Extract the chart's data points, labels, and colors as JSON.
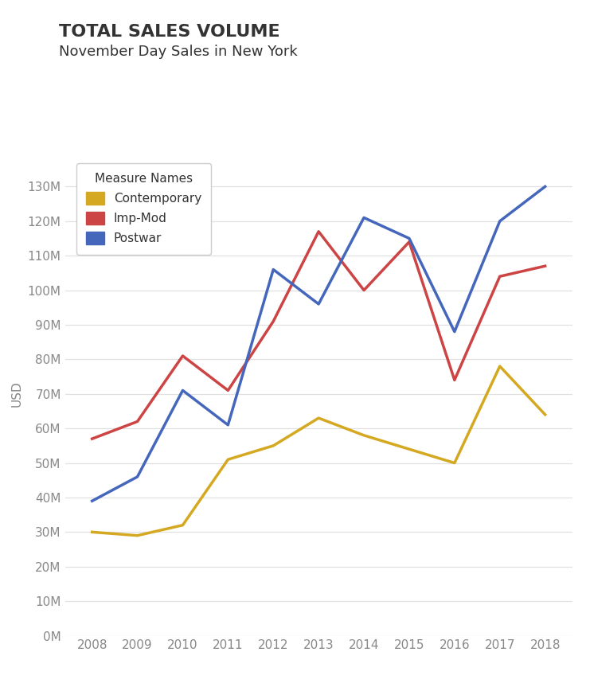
{
  "title": "TOTAL SALES VOLUME",
  "subtitle": "November Day Sales in New York",
  "years": [
    2008,
    2009,
    2010,
    2011,
    2012,
    2013,
    2014,
    2015,
    2016,
    2017,
    2018
  ],
  "contemporary": [
    30,
    29,
    32,
    51,
    55,
    63,
    58,
    54,
    50,
    78,
    64
  ],
  "imp_mod": [
    57,
    62,
    81,
    71,
    91,
    117,
    100,
    114,
    74,
    104,
    107
  ],
  "postwar": [
    39,
    46,
    71,
    61,
    106,
    96,
    121,
    115,
    88,
    120,
    130
  ],
  "colors": {
    "contemporary": "#D4A820",
    "imp_mod": "#CC4444",
    "postwar": "#4466BB"
  },
  "legend_labels": [
    "Contemporary",
    "Imp-Mod",
    "Postwar"
  ],
  "legend_title": "Measure Names",
  "ylabel": "USD",
  "ylim": [
    0,
    140
  ],
  "yticks": [
    0,
    10,
    20,
    30,
    40,
    50,
    60,
    70,
    80,
    90,
    100,
    110,
    120,
    130
  ],
  "ytick_labels": [
    "0M",
    "10M",
    "20M",
    "30M",
    "40M",
    "50M",
    "60M",
    "70M",
    "80M",
    "90M",
    "100M",
    "110M",
    "120M",
    "130M"
  ],
  "background_color": "#FFFFFF",
  "plot_bg_color": "#FFFFFF",
  "grid_color": "#E0E0E0",
  "line_width": 2.5,
  "title_fontsize": 16,
  "subtitle_fontsize": 13,
  "legend_fontsize": 11,
  "tick_fontsize": 11,
  "ylabel_fontsize": 11,
  "text_color": "#333333",
  "tick_color": "#888888"
}
